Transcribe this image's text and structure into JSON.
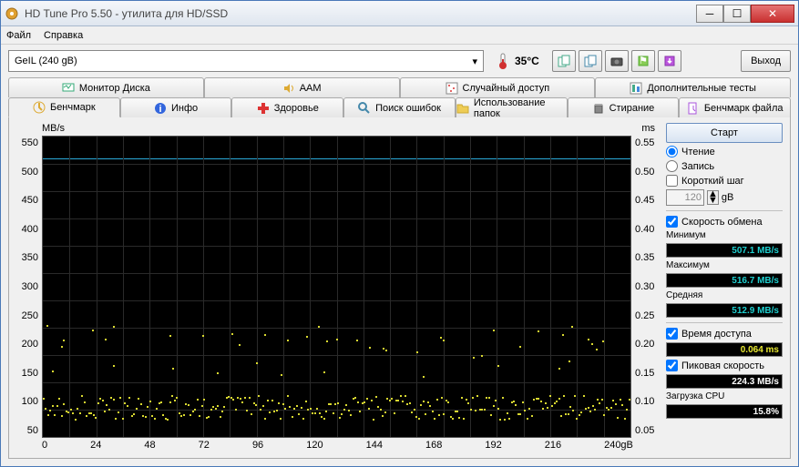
{
  "window": {
    "title": "HD Tune Pro 5.50 - утилита для HD/SSD"
  },
  "menu": {
    "file": "Файл",
    "help": "Справка"
  },
  "toolbar": {
    "drive": "GeIL (240 gB)",
    "temp": "35°C",
    "exit": "Выход"
  },
  "tabs_row1": [
    {
      "label": "Монитор Диска",
      "icon": "monitor"
    },
    {
      "label": "AAM",
      "icon": "speaker"
    },
    {
      "label": "Случайный доступ",
      "icon": "random"
    },
    {
      "label": "Дополнительные тесты",
      "icon": "extra"
    }
  ],
  "tabs_row2": [
    {
      "label": "Бенчмарк",
      "icon": "bench",
      "active": true
    },
    {
      "label": "Инфо",
      "icon": "info"
    },
    {
      "label": "Здоровье",
      "icon": "health"
    },
    {
      "label": "Поиск ошибок",
      "icon": "scan"
    },
    {
      "label": "Использование папок",
      "icon": "folder"
    },
    {
      "label": "Стирание",
      "icon": "erase"
    },
    {
      "label": "Бенчмарк файла",
      "icon": "filebench"
    }
  ],
  "chart": {
    "y_label": "MB/s",
    "y2_label": "ms",
    "y_ticks": [
      "550",
      "500",
      "450",
      "400",
      "350",
      "300",
      "250",
      "200",
      "150",
      "100",
      "50"
    ],
    "y2_ticks": [
      "0.55",
      "0.50",
      "0.45",
      "0.40",
      "0.35",
      "0.30",
      "0.25",
      "0.20",
      "0.15",
      "0.10",
      "0.05"
    ],
    "x_ticks": [
      "0",
      "24",
      "48",
      "72",
      "96",
      "120",
      "144",
      "168",
      "192",
      "216",
      "240gB"
    ],
    "x_max": 240,
    "y_max": 550,
    "read_line_value": 510,
    "read_line_color": "#2aa9d8",
    "scatter_color": "#d8d830",
    "grid_color": "#2a2a2a",
    "bg": "#000000",
    "scatter_band_low_pct": 86,
    "scatter_band_high_pct": 94,
    "scatter_mid_low_pct": 62,
    "scatter_mid_high_pct": 80
  },
  "side": {
    "start": "Старт",
    "read": "Чтение",
    "write": "Запись",
    "short_stroke": "Короткий шаг",
    "short_stroke_val": "120",
    "short_stroke_unit": "gB",
    "transfer_rate": "Скорость обмена",
    "min_label": "Минимум",
    "min_val": "507.1 MB/s",
    "max_label": "Максимум",
    "max_val": "516.7 MB/s",
    "avg_label": "Средняя",
    "avg_val": "512.9 MB/s",
    "access_label": "Время доступа",
    "access_val": "0.064 ms",
    "burst_label": "Пиковая скорость",
    "burst_val": "224.3 MB/s",
    "cpu_label": "Загрузка CPU",
    "cpu_val": "15.8%"
  }
}
